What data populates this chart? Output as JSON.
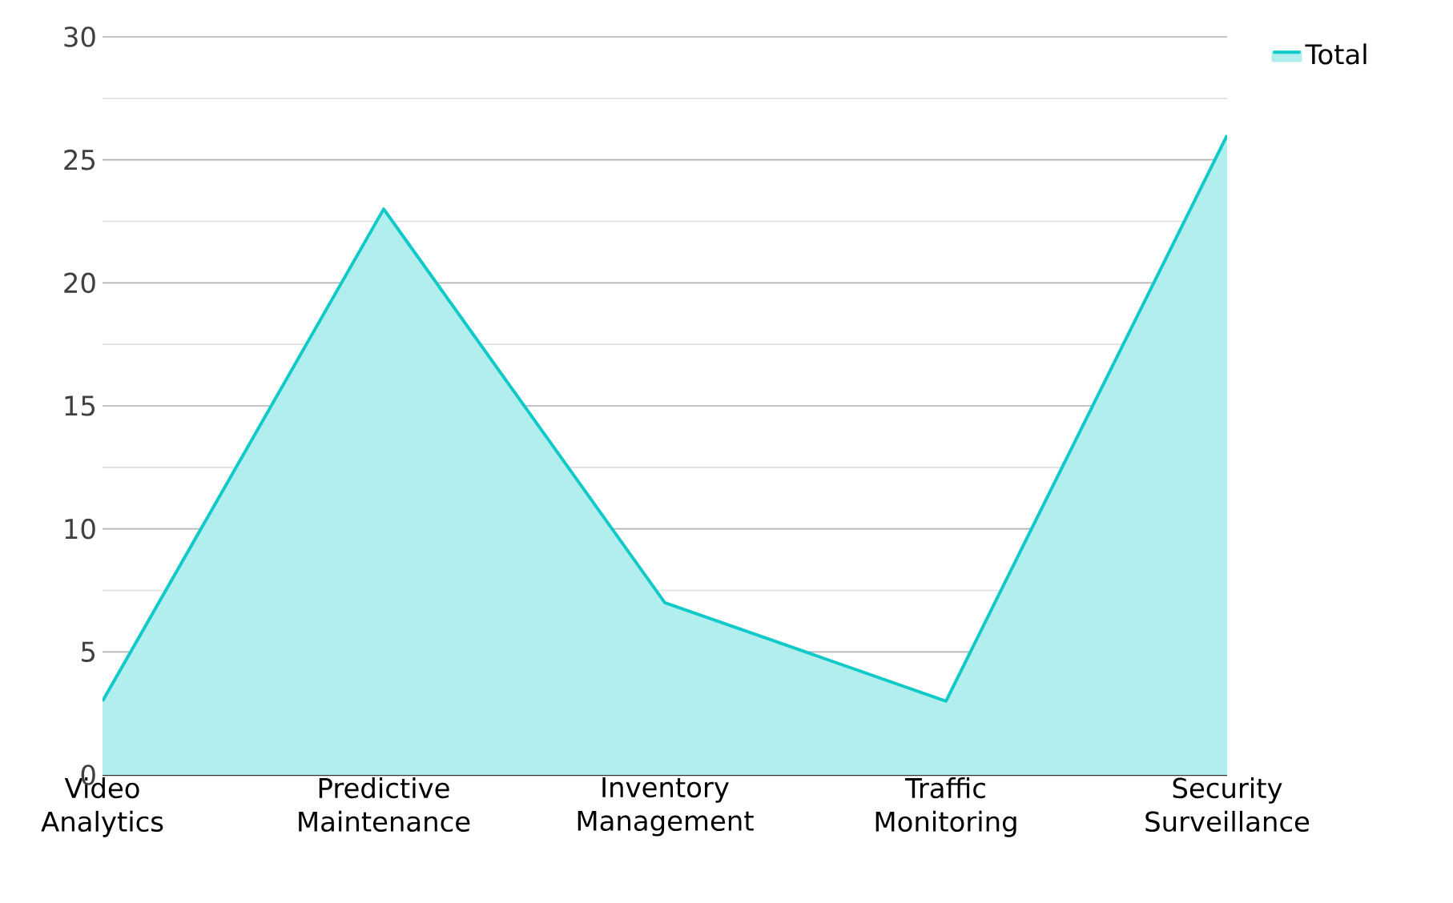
{
  "chart_data": {
    "type": "area",
    "categories": [
      "Video Analytics",
      "Predictive Maintenance",
      "Inventory Management",
      "Traffic Monitoring",
      "Security Surveillance"
    ],
    "series": [
      {
        "name": "Total",
        "color": "#12c9c9",
        "values": [
          3,
          23,
          7,
          3,
          26
        ]
      }
    ],
    "ylim": [
      0,
      30
    ],
    "yticks": [
      0,
      {
        "value": 2.5,
        "label": null
      },
      5,
      {
        "value": 7.5,
        "label": null
      },
      10,
      {
        "value": 12.5,
        "label": null
      },
      15,
      {
        "value": 17.5,
        "label": null
      },
      20,
      {
        "value": 22.5,
        "label": null
      },
      25,
      {
        "value": 27.5,
        "label": null
      },
      30
    ],
    "grid": "y",
    "legend": "top right"
  }
}
